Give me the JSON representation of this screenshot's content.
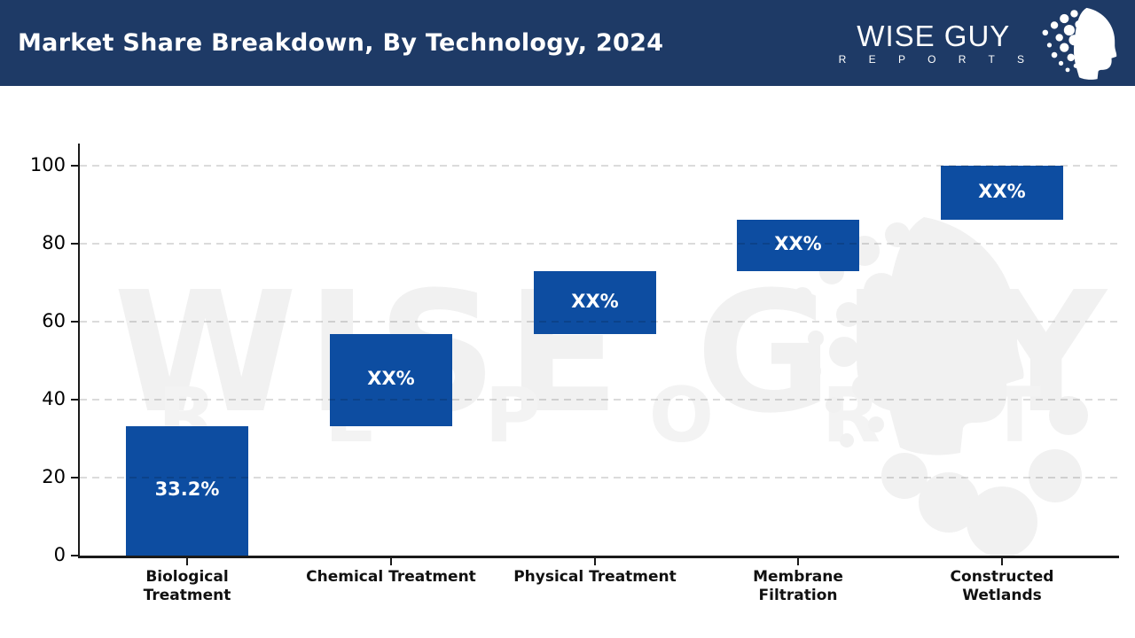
{
  "header": {
    "title": "Market Share Breakdown, By Technology, 2024",
    "bg_color": "#1e3a66",
    "brand": {
      "name": "WISE GUY",
      "sub": "R E P O R T S"
    }
  },
  "watermark": {
    "line1": "WISE GUY",
    "line2": "R E P O R T S"
  },
  "chart_data": {
    "type": "bar",
    "subtype": "waterfall",
    "title": "Market Share Breakdown, By Technology, 2024",
    "xlabel": "",
    "ylabel": "",
    "ylim": [
      0,
      105
    ],
    "yticks": [
      0,
      20,
      40,
      60,
      80,
      100
    ],
    "grid": "horizontal-dashed",
    "legend": "none",
    "bar_color": "#0d4da1",
    "bar_label_color": "#ffffff",
    "categories": [
      "Biological Treatment",
      "Chemical Treatment",
      "Physical Treatment",
      "Membrane Filtration",
      "Constructed Wetlands"
    ],
    "category_label_lines": [
      "Biological\nTreatment",
      "Chemical Treatment",
      "Physical Treatment",
      "Membrane\nFiltration",
      "Constructed\nWetlands"
    ],
    "segments": [
      {
        "category": "Biological Treatment",
        "start": 0,
        "end": 33.2,
        "label": "33.2%"
      },
      {
        "category": "Chemical Treatment",
        "start": 33.2,
        "end": 56.8,
        "label": "XX%"
      },
      {
        "category": "Physical Treatment",
        "start": 56.8,
        "end": 72.9,
        "label": "XX%"
      },
      {
        "category": "Membrane Filtration",
        "start": 72.9,
        "end": 86.1,
        "label": "XX%"
      },
      {
        "category": "Constructed Wetlands",
        "start": 86.1,
        "end": 100.0,
        "label": "XX%"
      }
    ]
  }
}
